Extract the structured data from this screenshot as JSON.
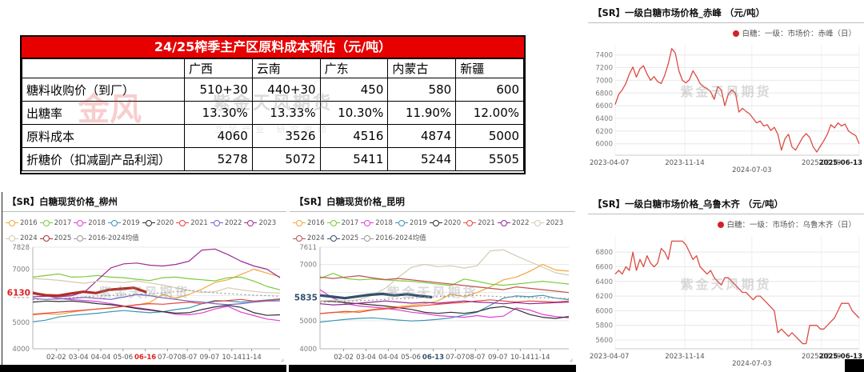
{
  "watermark": {
    "main": "紫金天风期货",
    "sub": "立足产业 研究驱动",
    "stamp": "金风"
  },
  "table": {
    "title": "24/25榨季主产区原料成本预估（元/吨）",
    "title_bg": "#e60000",
    "columns": [
      "",
      "广西",
      "云南",
      "广东",
      "内蒙古",
      "新疆"
    ],
    "rows": [
      {
        "label": "糖料收购价（到厂）",
        "values": [
          "510+30",
          "440+30",
          "450",
          "580",
          "600"
        ]
      },
      {
        "label": "出糖率",
        "values": [
          "13.30%",
          "13.33%",
          "10.30%",
          "11.90%",
          "12.00%"
        ]
      },
      {
        "label": "原料成本",
        "values": [
          "4060",
          "3526",
          "4516",
          "4874",
          "5000"
        ]
      },
      {
        "label": "折糖价（扣减副产品利润）",
        "values": [
          "5278",
          "5072",
          "5411",
          "5244",
          "5505"
        ]
      }
    ]
  },
  "chart_data": [
    {
      "id": "chifeng",
      "type": "line",
      "title": "【SR】一级白糖市场价格_赤峰 （元/吨）",
      "legend": "白糖：一级：市场价：赤峰（日）",
      "color": "#dd4b43",
      "grid": true,
      "legend_position": "top-right",
      "xlabel": "",
      "ylabel": "元/吨",
      "ylim": [
        5820,
        7560
      ],
      "yticks": [
        6000,
        6200,
        6400,
        6600,
        6800,
        7000,
        7200,
        7400
      ],
      "xticks": [
        {
          "label": "2023-04-07",
          "pos": 0.0,
          "edge": "start"
        },
        {
          "label": "2023-11-14",
          "pos": 0.285
        },
        {
          "label": "2024-07-03",
          "pos": 0.56,
          "row": 2
        },
        {
          "label": "2025-02-19",
          "pos": 0.845
        },
        {
          "label": "2025-06-13",
          "pos": 1.0,
          "bold": true,
          "edge": "end"
        }
      ],
      "values": [
        6620,
        6780,
        6850,
        6950,
        7100,
        7210,
        7050,
        7180,
        7230,
        7100,
        7000,
        7060,
        6980,
        6950,
        7080,
        7260,
        7500,
        7430,
        7150,
        7000,
        6960,
        7010,
        7150,
        7060,
        6950,
        6900,
        6870,
        6820,
        6700,
        6900,
        6850,
        6600,
        6780,
        6850,
        6800,
        6500,
        6560,
        6510,
        6470,
        6400,
        6330,
        6360,
        6280,
        6300,
        6210,
        6260,
        6150,
        5900,
        6080,
        6150,
        5950,
        5900,
        6000,
        6100,
        6160,
        6100,
        5950,
        5870,
        5960,
        6050,
        6150,
        6300,
        6250,
        6330,
        6280,
        6310,
        6200,
        6160,
        6130,
        6000
      ]
    },
    {
      "id": "liuzhou",
      "type": "line",
      "title": "【SR】白糖现货价格_柳州",
      "grid": true,
      "legend_position": "top",
      "xlabel": "",
      "ylabel": "元/吨",
      "ylim": [
        4000,
        7828
      ],
      "ytop_label": "7828",
      "yticks": [
        4000,
        5000,
        6000,
        7000
      ],
      "current": {
        "text": "6130",
        "value": 6130,
        "color": "#e02020"
      },
      "xticks": [
        {
          "label": "02-02",
          "pos": 0.095
        },
        {
          "label": "03-04",
          "pos": 0.185
        },
        {
          "label": "04-04",
          "pos": 0.275
        },
        {
          "label": "05-06",
          "pos": 0.365
        },
        {
          "label": "06-16",
          "pos": 0.455,
          "current": true
        },
        {
          "label": "07-07",
          "pos": 0.545
        },
        {
          "label": "08-07",
          "pos": 0.625
        },
        {
          "label": "09-07",
          "pos": 0.715
        },
        {
          "label": "10-14",
          "pos": 0.805
        },
        {
          "label": "11-14",
          "pos": 0.885
        }
      ],
      "series": [
        {
          "name": "2016",
          "color": "#f0a83a",
          "values": [
            5280,
            5320,
            5300,
            5380,
            5450,
            5500,
            5530,
            5600,
            5650,
            5750,
            6050,
            5900,
            6050,
            6250,
            6500,
            6600,
            6800,
            7000,
            6850,
            6720
          ]
        },
        {
          "name": "2017",
          "color": "#7dc93e",
          "values": [
            6700,
            6760,
            6820,
            6700,
            6720,
            6760,
            6700,
            6680,
            6620,
            6570,
            6680,
            6700,
            6640,
            6600,
            6560,
            6680,
            6700,
            6550,
            6350,
            6220
          ]
        },
        {
          "name": "2018",
          "color": "#e040d0",
          "values": [
            6150,
            6000,
            5900,
            5850,
            5820,
            5780,
            5700,
            5620,
            5550,
            5480,
            5400,
            5300,
            5280,
            5350,
            5500,
            5600,
            5380,
            5250,
            5120,
            5060
          ]
        },
        {
          "name": "2019",
          "color": "#3c96b4",
          "values": [
            5020,
            5080,
            5200,
            5260,
            5300,
            5340,
            5400,
            5440,
            5400,
            5360,
            5400,
            5480,
            5540,
            5700,
            5820,
            5800,
            5760,
            5800,
            5840,
            5880
          ]
        },
        {
          "name": "2020",
          "color": "#2f2f2f",
          "values": [
            5760,
            5800,
            5780,
            5800,
            5760,
            5700,
            5660,
            5600,
            5520,
            5460,
            5400,
            5340,
            5360,
            5480,
            5580,
            5640,
            5560,
            5360,
            5260,
            5280
          ]
        },
        {
          "name": "2021",
          "color": "#e8463c",
          "values": [
            5300,
            5340,
            5380,
            5420,
            5460,
            5500,
            5540,
            5600,
            5660,
            5700,
            5680,
            5720,
            5760,
            5700,
            5780,
            5820,
            5860,
            5800,
            5820,
            5860
          ]
        },
        {
          "name": "2022",
          "color": "#6f63c9",
          "values": [
            5900,
            5860,
            5880,
            5900,
            5940,
            5900,
            5860,
            5950,
            6050,
            6000,
            5920,
            5860,
            5800,
            5760,
            5700,
            5660,
            5700,
            5760,
            5800,
            5810
          ]
        },
        {
          "name": "2023",
          "color": "#9b2d93",
          "values": [
            5960,
            5980,
            5960,
            6000,
            6150,
            6600,
            7050,
            7200,
            7230,
            7150,
            7120,
            7180,
            7300,
            7720,
            7760,
            7550,
            7300,
            7120,
            7000,
            6680
          ]
        },
        {
          "name": "2024",
          "color": "#d5cab1",
          "values": [
            6650,
            6620,
            6580,
            6520,
            6470,
            6550,
            6520,
            6500,
            6560,
            6480,
            6400,
            6300,
            6200,
            6120,
            6150,
            6300,
            6220,
            6160,
            6120,
            6100
          ]
        },
        {
          "name": "2025",
          "color": "#b0302a",
          "width": 3.2,
          "span": 0.46,
          "values": [
            6100,
            6020,
            6000,
            6080,
            6150,
            6100,
            6220,
            6260,
            6300,
            6130
          ]
        },
        {
          "name": "2016-2024均值",
          "color": "#9a9a9a",
          "dash": true,
          "values": [
            5850,
            5870,
            5900,
            5930,
            5960,
            5990,
            6010,
            6040,
            6060,
            6080,
            6110,
            6160,
            6200,
            6160,
            6110,
            6080,
            6050,
            6020,
            6000,
            5980
          ]
        }
      ]
    },
    {
      "id": "kunming",
      "type": "line",
      "title": "【SR】白糖现货价格_昆明",
      "grid": true,
      "legend_position": "top",
      "xlabel": "",
      "ylabel": "元/吨",
      "ylim": [
        4000,
        7611
      ],
      "ytop_label": "7611",
      "yticks": [
        4000,
        5000,
        7000
      ],
      "current": {
        "text": "5835",
        "value": 5835,
        "color": "#33516e"
      },
      "xticks": [
        {
          "label": "02-02",
          "pos": 0.095
        },
        {
          "label": "03-04",
          "pos": 0.185
        },
        {
          "label": "04-04",
          "pos": 0.275
        },
        {
          "label": "05-06",
          "pos": 0.365
        },
        {
          "label": "06-13",
          "pos": 0.455,
          "current": true
        },
        {
          "label": "07-07",
          "pos": 0.545
        },
        {
          "label": "08-07",
          "pos": 0.625
        },
        {
          "label": "09-07",
          "pos": 0.715
        },
        {
          "label": "10-14",
          "pos": 0.805
        },
        {
          "label": "11-14",
          "pos": 0.885
        }
      ],
      "series": [
        {
          "name": "2016",
          "color": "#f0a83a",
          "values": [
            5250,
            5300,
            5280,
            5350,
            5400,
            5450,
            5500,
            5550,
            5600,
            5700,
            5950,
            5850,
            6000,
            6200,
            6450,
            6550,
            6750,
            7000,
            6800,
            6760
          ]
        },
        {
          "name": "2017",
          "color": "#7dc93e",
          "values": [
            6500,
            6680,
            6500,
            6450,
            6480,
            6450,
            6420,
            6400,
            6350,
            6300,
            6250,
            6480,
            6400,
            6300,
            6260,
            6300,
            6350,
            6400,
            6350,
            6300
          ]
        },
        {
          "name": "2018",
          "color": "#e040d0",
          "values": [
            6100,
            5800,
            5600,
            5520,
            5480,
            5440,
            5380,
            5300,
            5250,
            5180,
            5150,
            5120,
            5180,
            5120,
            5160,
            5450,
            5380,
            5220,
            5150,
            5100
          ]
        },
        {
          "name": "2019",
          "color": "#3c96b4",
          "values": [
            4950,
            5000,
            5050,
            5080,
            5100,
            5060,
            5020,
            4990,
            5010,
            5050,
            5100,
            5200,
            5300,
            5550,
            5800,
            5880,
            5850,
            5900,
            5800,
            5750
          ]
        },
        {
          "name": "2020",
          "color": "#2f2f2f",
          "values": [
            5700,
            5680,
            5640,
            5600,
            5560,
            5520,
            5460,
            5400,
            5300,
            5260,
            5300,
            5260,
            5320,
            5450,
            5500,
            5400,
            5220,
            5120,
            5080,
            5150
          ]
        },
        {
          "name": "2021",
          "color": "#e8463c",
          "values": [
            5250,
            5290,
            5330,
            5300,
            5380,
            5420,
            5460,
            5500,
            5540,
            5580,
            5620,
            5650,
            5700,
            5740,
            5700,
            5660,
            5700,
            5680,
            5660,
            5700
          ]
        },
        {
          "name": "2022",
          "color": "#93278f",
          "values": [
            5600,
            5560,
            5580,
            5620,
            5660,
            5700,
            5660,
            5620,
            5650,
            5620,
            5660,
            5700,
            5660,
            5640,
            5600,
            5640,
            5600,
            5620,
            5640,
            5660
          ]
        },
        {
          "name": "2023",
          "color": "#d5cab1",
          "values": [
            5700,
            5720,
            5700,
            5750,
            5900,
            6150,
            6550,
            6900,
            7000,
            6920,
            6950,
            6870,
            6950,
            7480,
            7520,
            7300,
            7100,
            6900,
            6700,
            6620
          ]
        },
        {
          "name": "2024",
          "color": "#c0504d",
          "values": [
            6550,
            6500,
            6550,
            6600,
            6520,
            6460,
            6500,
            6450,
            6400,
            6350,
            6300,
            6250,
            6200,
            6150,
            6100,
            6200,
            6150,
            6100,
            6050,
            6000
          ]
        },
        {
          "name": "2025",
          "color": "#33516e",
          "width": 3.2,
          "span": 0.45,
          "values": [
            5900,
            5850,
            5800,
            5860,
            5920,
            5950,
            5900,
            5940,
            5880,
            5835
          ]
        },
        {
          "name": "2016-2024均值",
          "color": "#9a9a9a",
          "dash": true,
          "values": [
            5650,
            5670,
            5690,
            5710,
            5730,
            5760,
            5780,
            5800,
            5830,
            5850,
            5880,
            5900,
            5890,
            5870,
            5850,
            5840,
            5820,
            5810,
            5800,
            5790
          ]
        }
      ]
    },
    {
      "id": "urumqi",
      "type": "line",
      "title": "【SR】一级白糖市场价格_乌鲁木齐 （元/吨）",
      "legend": "白糖：一级：市场价：乌鲁木齐（日）",
      "color": "#dd4b43",
      "grid": true,
      "legend_position": "top-right",
      "xlabel": "",
      "ylabel": "元/吨",
      "ylim": [
        5480,
        7020
      ],
      "yticks": [
        5600,
        5800,
        6000,
        6200,
        6400,
        6600,
        6800
      ],
      "xticks": [
        {
          "label": "2023-04-07",
          "pos": 0.0,
          "edge": "start"
        },
        {
          "label": "2023-11-14",
          "pos": 0.285
        },
        {
          "label": "2024-07-03",
          "pos": 0.56,
          "row": 2
        },
        {
          "label": "2025-02-19",
          "pos": 0.845
        },
        {
          "label": "2025-06-13",
          "pos": 1.0,
          "bold": true,
          "edge": "end"
        }
      ],
      "values": [
        6500,
        6550,
        6500,
        6600,
        6550,
        6800,
        6550,
        6700,
        6600,
        6750,
        6650,
        6600,
        6650,
        6850,
        6800,
        6700,
        6950,
        6950,
        6950,
        6950,
        6900,
        6800,
        6700,
        6750,
        6600,
        6550,
        6500,
        6550,
        6450,
        6400,
        6350,
        6450,
        6450,
        6400,
        6350,
        6300,
        6250,
        6250,
        6200,
        6150,
        6200,
        6200,
        6150,
        6100,
        6050,
        6000,
        5700,
        5750,
        5700,
        5650,
        5700,
        5650,
        5600,
        5550,
        5550,
        5800,
        5800,
        5800,
        5750,
        5750,
        5800,
        5850,
        5900,
        6000,
        6100,
        6100,
        6100,
        6000,
        5950,
        5900
      ]
    }
  ]
}
